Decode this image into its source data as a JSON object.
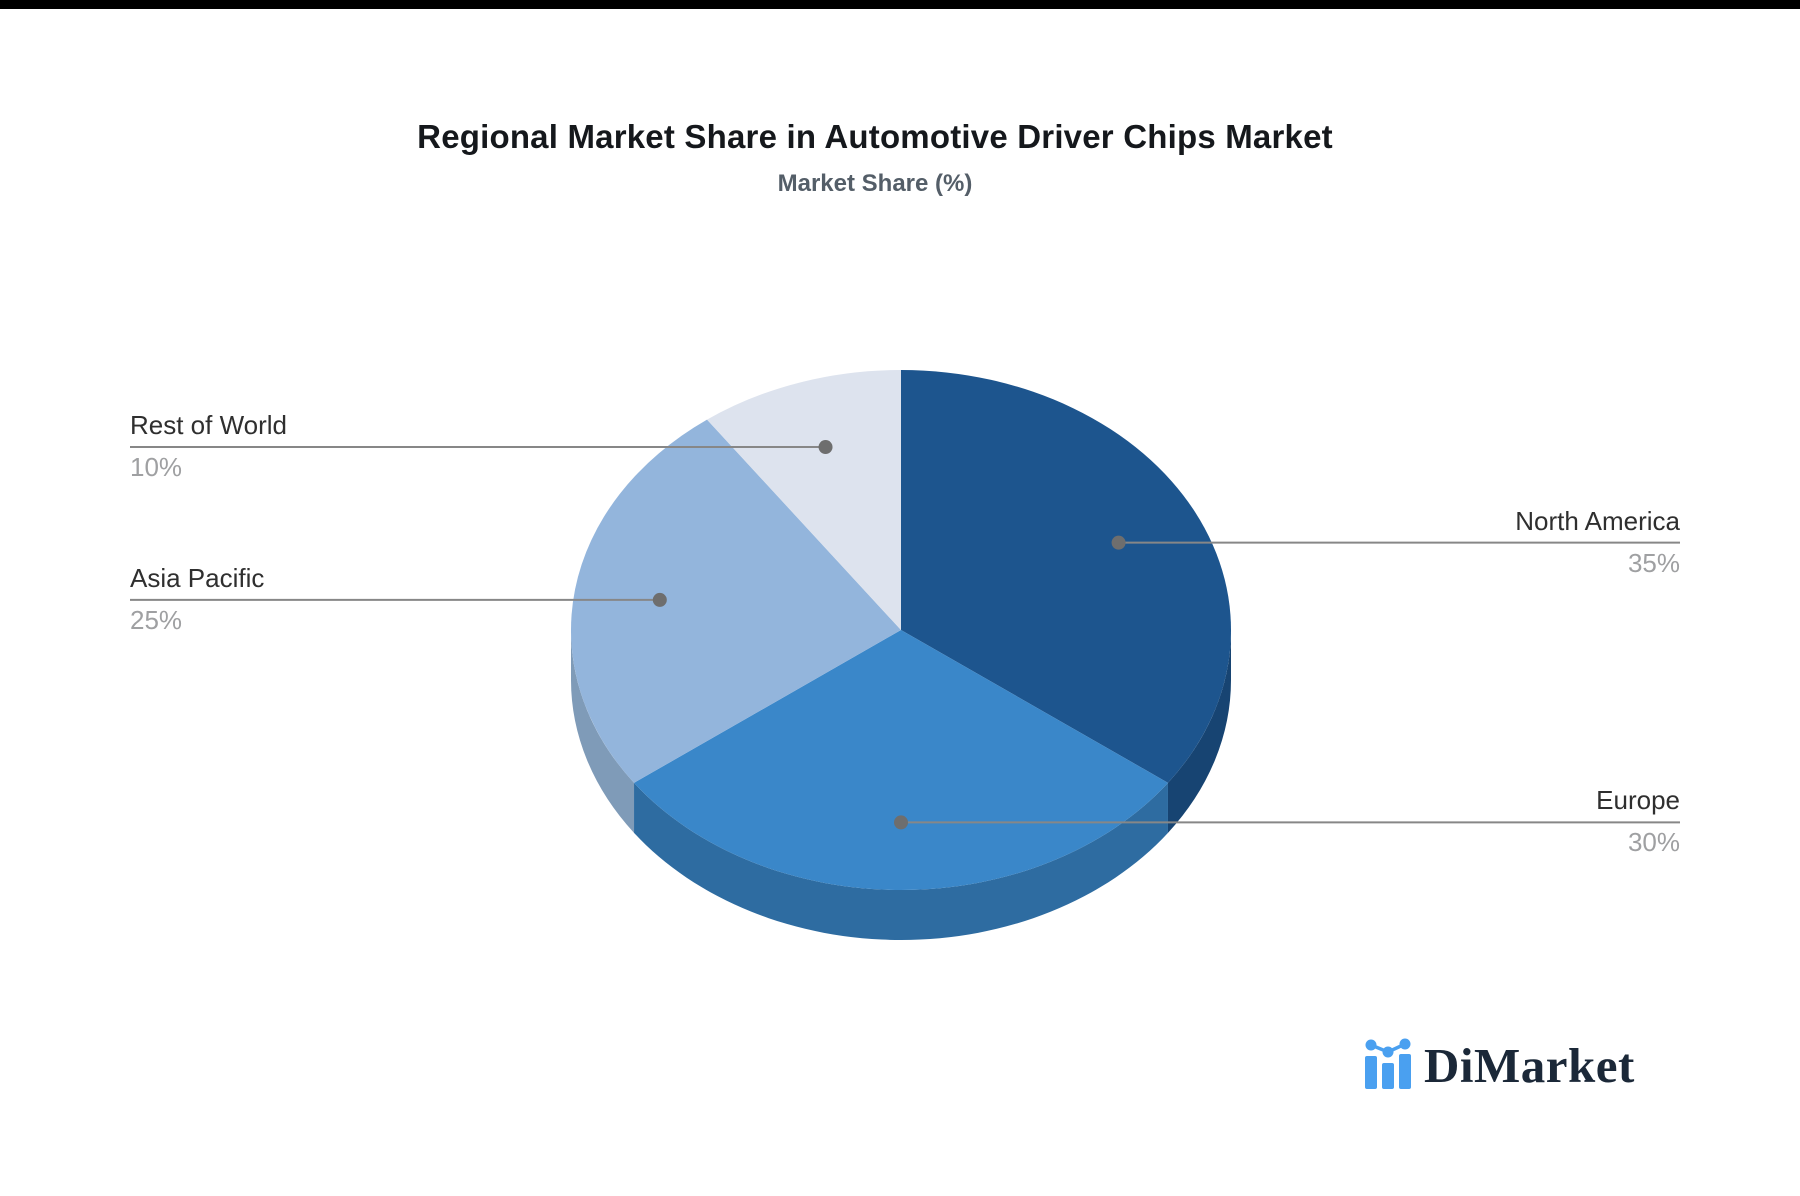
{
  "page": {
    "top_bar_color": "#000000",
    "background": "#ffffff"
  },
  "header": {
    "title": "Regional Market Share in Automotive Driver Chips Market",
    "subtitle": "Market Share (%)"
  },
  "chart_data": {
    "type": "pie",
    "style": "3d-pie",
    "title": "Regional Market Share in Automotive Driver Chips Market",
    "subtitle": "Market Share (%)",
    "unit": "%",
    "start_angle": "12-oclock",
    "direction": "clockwise",
    "slices": [
      {
        "name": "North America",
        "value": 35,
        "value_label": "35%",
        "color": "#1d558e",
        "depth_color": "#174472",
        "label_side": "right"
      },
      {
        "name": "Europe",
        "value": 30,
        "value_label": "30%",
        "color": "#3a87c9",
        "depth_color": "#2e6ca1",
        "label_side": "right"
      },
      {
        "name": "Asia Pacific",
        "value": 25,
        "value_label": "25%",
        "color": "#93b5dc",
        "depth_color": "#7f9bb8",
        "label_side": "left"
      },
      {
        "name": "Rest of World",
        "value": 10,
        "value_label": "10%",
        "color": "#dde3ee",
        "depth_color": "#b9c6d6",
        "label_side": "left"
      }
    ],
    "leader_line_color": "#878787",
    "leader_dot_color": "#6e6e6e",
    "label_name_color": "#2f2f2f",
    "label_value_color": "#9fa0a2"
  },
  "branding": {
    "logo_text": "DiMarket",
    "logo_icon": "bar-line-chart-icon",
    "logo_icon_color": "#4AA0F0",
    "logo_text_color": "#1b2838"
  }
}
